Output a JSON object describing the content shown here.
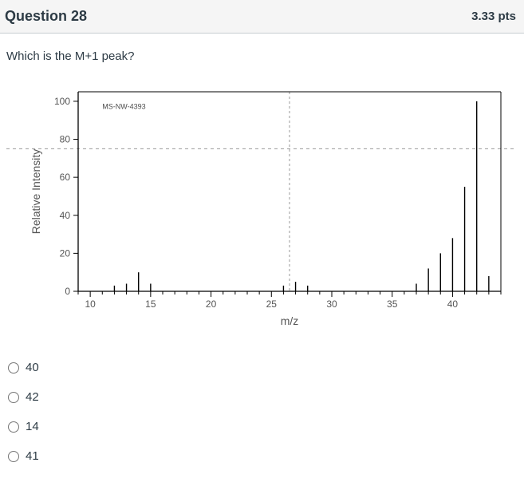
{
  "header": {
    "title": "Question 28",
    "points": "3.33 pts"
  },
  "prompt": "Which is the M+1 peak?",
  "chart": {
    "type": "mass-spectrum",
    "annotation": "MS-NW-4393",
    "xlabel": "m/z",
    "ylabel": "Relative Intensity",
    "xlim": [
      9,
      44
    ],
    "ylim": [
      0,
      105
    ],
    "xticks": [
      10,
      15,
      20,
      25,
      30,
      35,
      40
    ],
    "yticks": [
      0,
      20,
      40,
      60,
      80,
      100
    ],
    "dashed_hline_y": 75,
    "dashed_vline_x": 26.5,
    "peaks": [
      {
        "mz": 12,
        "i": 3
      },
      {
        "mz": 13,
        "i": 4
      },
      {
        "mz": 14,
        "i": 10
      },
      {
        "mz": 15,
        "i": 4
      },
      {
        "mz": 26,
        "i": 3
      },
      {
        "mz": 27,
        "i": 5
      },
      {
        "mz": 28,
        "i": 3
      },
      {
        "mz": 37,
        "i": 4
      },
      {
        "mz": 38,
        "i": 12
      },
      {
        "mz": 39,
        "i": 20
      },
      {
        "mz": 40,
        "i": 28
      },
      {
        "mz": 41,
        "i": 55
      },
      {
        "mz": 42,
        "i": 100
      },
      {
        "mz": 43,
        "i": 8
      }
    ],
    "axis_color": "#000000",
    "peak_color": "#000000",
    "tick_color": "#000000",
    "dash_color": "#999999",
    "bg_color": "#ffffff",
    "label_color": "#555555",
    "annot_color": "#4a4a4a",
    "axis_fontsize": 12,
    "label_fontsize": 14,
    "annot_fontsize": 9,
    "line_width": 1.4
  },
  "options": [
    {
      "label": "40",
      "value": "40"
    },
    {
      "label": "42",
      "value": "42"
    },
    {
      "label": "14",
      "value": "14"
    },
    {
      "label": "41",
      "value": "41"
    }
  ]
}
